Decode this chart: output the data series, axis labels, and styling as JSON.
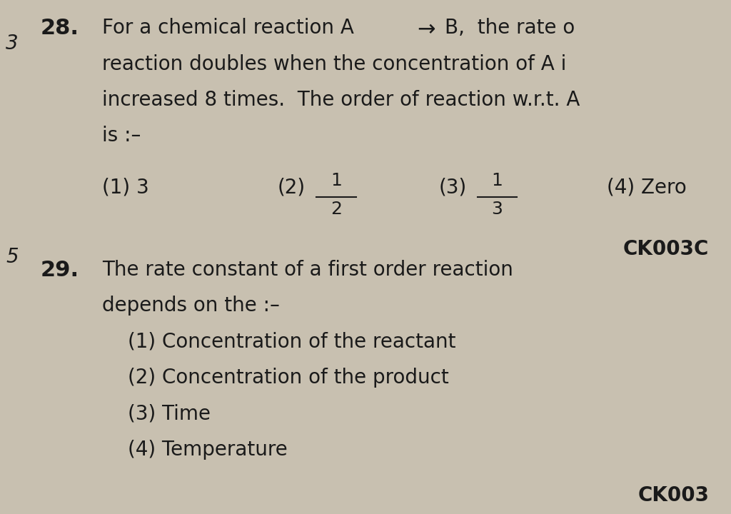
{
  "bg_color": "#c8c0b0",
  "text_color": "#1a1a1a",
  "q28_number": "28.",
  "q28_line1": "For a chemical reaction A → B,  the rate o",
  "q28_line2": "reaction doubles when the concentration of A i",
  "q28_line3": "increased 8 times.  The order of reaction w.r.t. A",
  "q28_line4": "is :–",
  "q28_opt1_prefix": "(1) 3",
  "q28_opt2_prefix": "(2)",
  "q28_opt2_frac_num": "1",
  "q28_opt2_frac_den": "2",
  "q28_opt3_prefix": "(3)",
  "q28_opt3_frac_num": "1",
  "q28_opt3_frac_den": "3",
  "q28_opt4": "(4) Zero",
  "ck_code": "CK003C",
  "q29_number": "29.",
  "q29_line1": "The rate constant of a first order reaction",
  "q29_line2": "depends on the :–",
  "q29_opt1": "(1) Concentration of the reactant",
  "q29_opt2": "(2) Concentration of the product",
  "q29_opt3": "(3) Time",
  "q29_opt4": "(4) Temperature",
  "ck_code2": "CK003",
  "left_num1": "3",
  "left_num2": "5",
  "left_bar_color": "#888888"
}
